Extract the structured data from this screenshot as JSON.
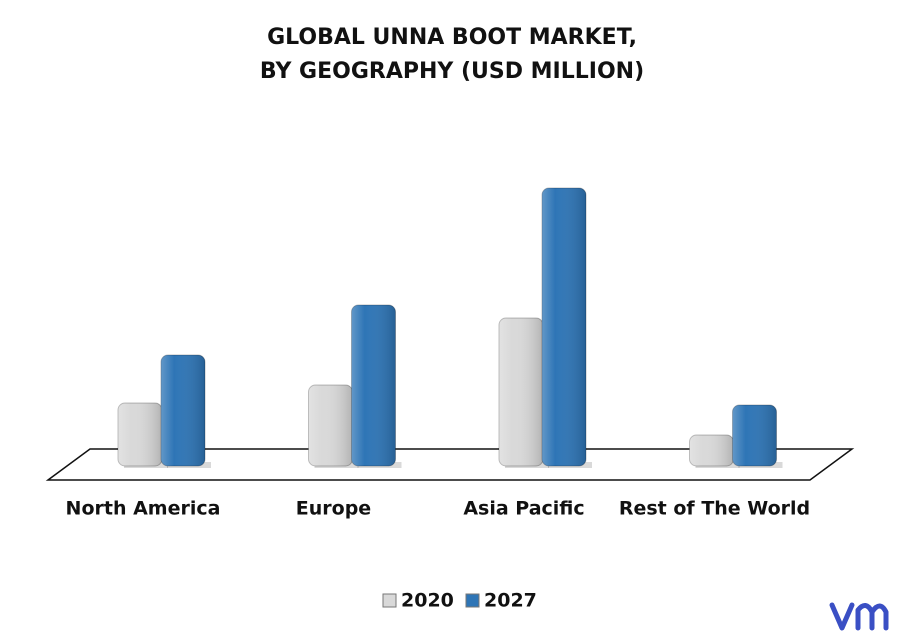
{
  "chart_data": {
    "type": "bar",
    "title": [
      "GLOBAL UNNA BOOT MARKET,",
      "BY GEOGRAPHY (USD MILLION)"
    ],
    "categories": [
      "North America",
      "Europe",
      "Asia Pacific",
      "Rest of The World"
    ],
    "series": [
      {
        "name": "2020",
        "color": "#d9d9d9",
        "values": [
          63,
          81,
          148,
          31
        ]
      },
      {
        "name": "2027",
        "color": "#2e75b6",
        "values": [
          111,
          161,
          278,
          61
        ]
      }
    ]
  }
}
